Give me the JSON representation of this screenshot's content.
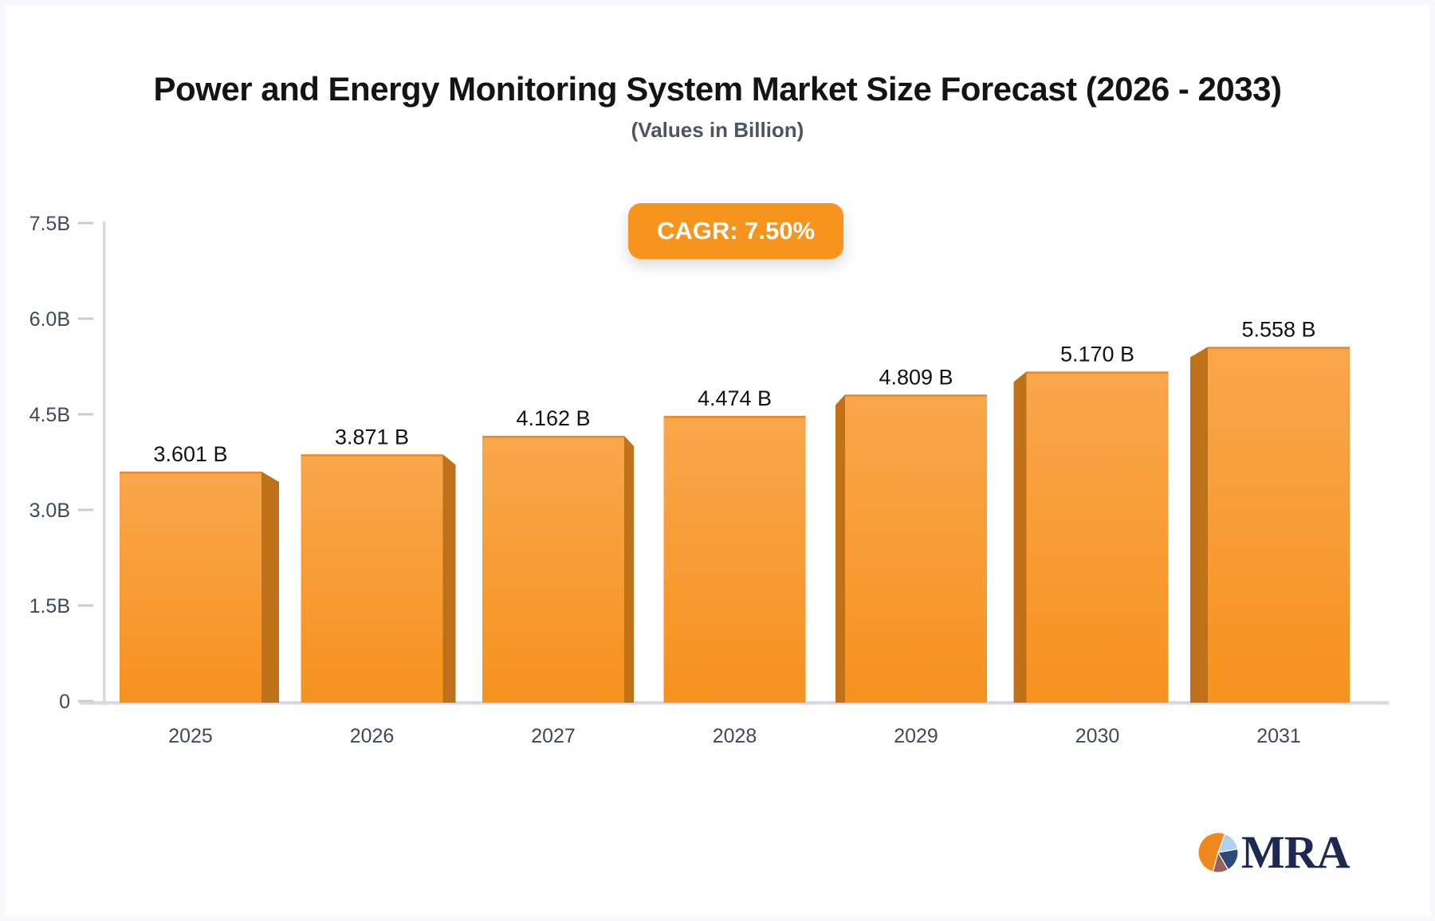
{
  "page": {
    "title": "Power and Energy Monitoring System Market Size Forecast (2026 - 2033)",
    "subtitle": "(Values in Billion)"
  },
  "badge": {
    "label": "CAGR: 7.50%",
    "bg": "#F7941D",
    "text_color": "#FFFFFF"
  },
  "chart_data": {
    "type": "bar",
    "title": "Power and Energy Monitoring System Market Size Forecast (2026 - 2033)",
    "subtitle": "(Values in Billion)",
    "cagr": "7.50%",
    "categories": [
      "2025",
      "2026",
      "2027",
      "2028",
      "2029",
      "2030",
      "2031"
    ],
    "values": [
      3.601,
      3.871,
      4.162,
      4.474,
      4.809,
      5.17,
      5.558
    ],
    "value_labels": [
      "3.601 B",
      "3.871 B",
      "4.162 B",
      "4.474 B",
      "4.809 B",
      "5.170 B",
      "5.558 B"
    ],
    "unit": "Billion",
    "ylim": [
      0,
      7.5
    ],
    "yticks": [
      {
        "value": 0,
        "label": "0"
      },
      {
        "value": 1.5,
        "label": "1.5B"
      },
      {
        "value": 3,
        "label": "3.0B"
      },
      {
        "value": 4.5,
        "label": "4.5B"
      },
      {
        "value": 6,
        "label": "6.0B"
      },
      {
        "value": 7.5,
        "label": "7.5B"
      }
    ],
    "grid": false,
    "legend": false,
    "bar_style": "3d-perspective",
    "colors": {
      "bar_top": "#F9A64B",
      "bar_bottom": "#F6921E",
      "bar_side": "#BE7118",
      "bar_top_edge": "#E8892B",
      "axis": "#D7DBE1",
      "tick": "#C6CCD4",
      "tick_label": "#3E4A5B",
      "value_label": "#101318",
      "category_label": "#3E4A5B"
    }
  },
  "branding": {
    "logo_text": "MRA",
    "text_color": "#1C2950",
    "pie": {
      "orange": "#F0871F",
      "light_blue": "#A9D3EE",
      "navy": "#2C4A7C",
      "maroon": "#96605C"
    }
  }
}
